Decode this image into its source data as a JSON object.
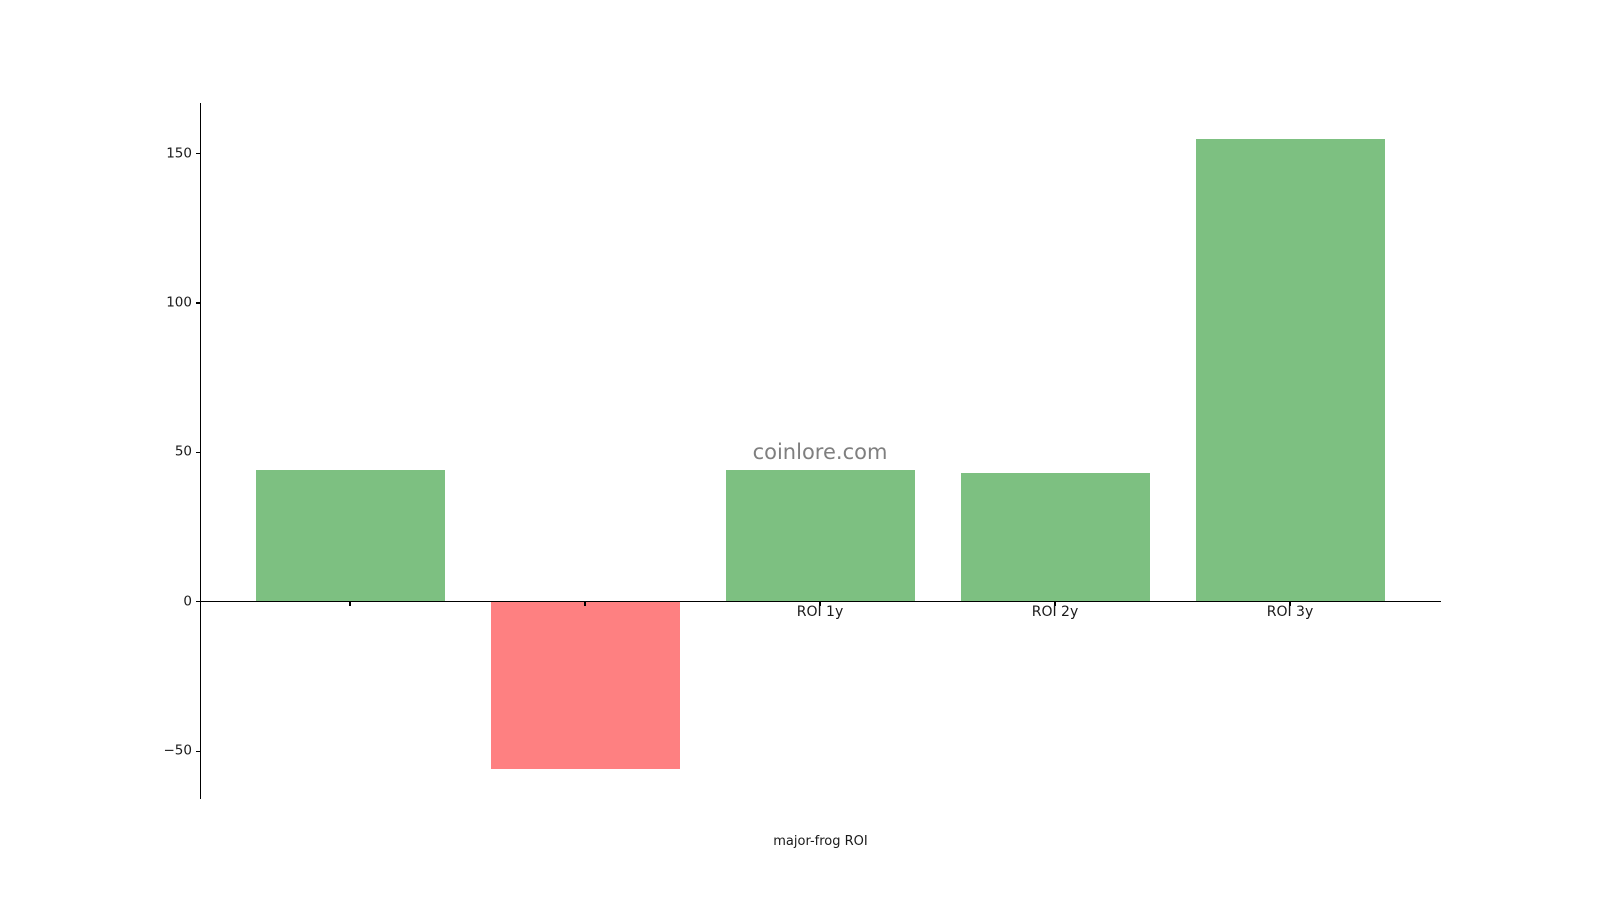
{
  "watermark": {
    "text": "coinlore.com",
    "color": "#7f7f7f"
  },
  "chart_data": {
    "type": "bar",
    "categories": [
      "",
      "",
      "ROI 1y",
      "ROI 2y",
      "ROI 3y"
    ],
    "values": [
      44,
      -56,
      44,
      43,
      155
    ],
    "title": "",
    "xlabel": "major-frog ROI",
    "ylabel": "",
    "yticks": [
      150,
      100,
      50,
      0,
      -50
    ],
    "ylim": [
      -66,
      167
    ],
    "grid": false,
    "legend": "none",
    "positive_color": "#7dc081",
    "negative_color": "#fe8081",
    "axis_color": "#000000",
    "tick_label_color": "#1a1a1a"
  }
}
